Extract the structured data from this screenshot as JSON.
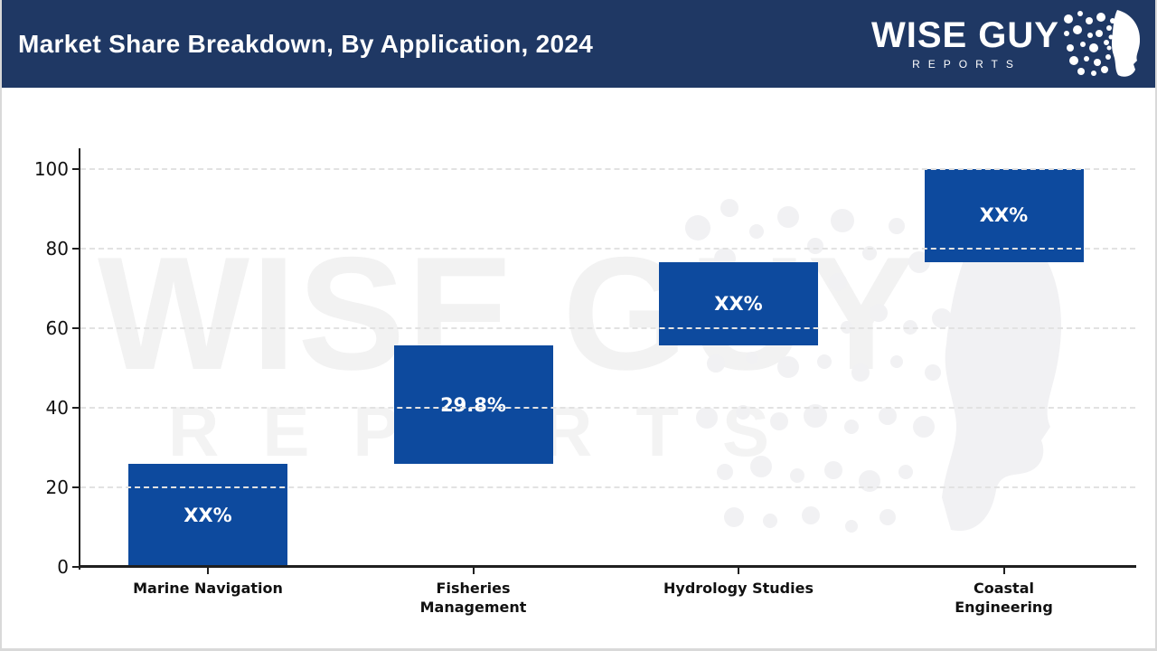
{
  "header": {
    "title": "Market Share Breakdown, By Application, 2024",
    "logo": {
      "name": "WISE GUY",
      "subtitle": "REPORTS"
    }
  },
  "watermark": {
    "line1": "WISE GUY",
    "line2": "REPORTS"
  },
  "chart_data": {
    "type": "bar",
    "subtype": "waterfall",
    "title": "Market Share Breakdown, By Application, 2024",
    "categories": [
      "Marine Navigation",
      "Fisheries Management",
      "Hydrology Studies",
      "Coastal Engineering"
    ],
    "category_label_lines": [
      [
        "Marine Navigation"
      ],
      [
        "Fisheries",
        "Management"
      ],
      [
        "Hydrology Studies"
      ],
      [
        "Coastal",
        "Engineering"
      ]
    ],
    "bars": [
      {
        "category": "Marine Navigation",
        "start": 0,
        "end": 25.8,
        "value_label": "XX%"
      },
      {
        "category": "Fisheries Management",
        "start": 25.8,
        "end": 55.6,
        "value_label": "29.8%"
      },
      {
        "category": "Hydrology Studies",
        "start": 55.6,
        "end": 76.6,
        "value_label": "XX%"
      },
      {
        "category": "Coastal Engineering",
        "start": 76.6,
        "end": 100,
        "value_label": "XX%"
      }
    ],
    "xlabel": "",
    "ylabel": "",
    "ylim": [
      0,
      100
    ],
    "yticks": [
      0,
      20,
      40,
      60,
      80,
      100
    ],
    "grid": "horizontal-dashed",
    "legend": "none",
    "bar_color": "#0d4a9e",
    "value_label_color": "#ffffff",
    "axis_color": "#1f1f1f",
    "gridline_color": "#e2e2e2"
  },
  "colors": {
    "header_bg": "#1f3864",
    "watermark": "#f2f2f2",
    "frame_border": "#d9d9d9"
  }
}
